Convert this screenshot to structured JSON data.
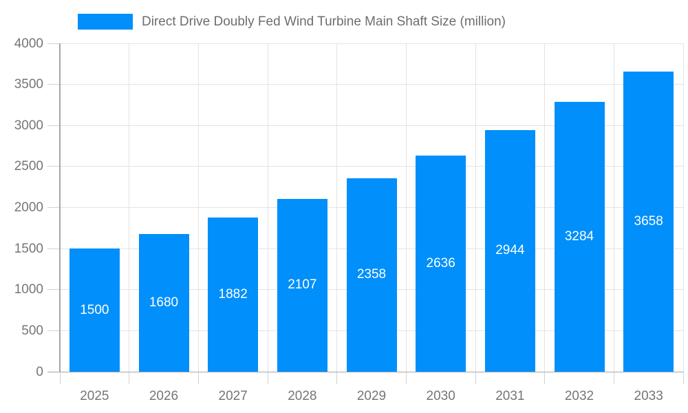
{
  "legend": {
    "series_label": "Direct Drive Doubly Fed Wind Turbine Main Shaft Size (million)"
  },
  "colors": {
    "bar": "#008FFB",
    "grid": "#e3e3e3",
    "axis": "#a6a6a6",
    "tick": "#d2d2d2",
    "axis_label_text": "#757575",
    "legend_text": "#6d6d6d",
    "bar_label_text": "#ffffff"
  },
  "chart_data": {
    "type": "bar",
    "title": "Direct Drive Doubly Fed Wind Turbine Main Shaft Size (million)",
    "categories": [
      "2025",
      "2026",
      "2027",
      "2028",
      "2029",
      "2030",
      "2031",
      "2032",
      "2033"
    ],
    "values": [
      1500,
      1680,
      1882,
      2107,
      2358,
      2636,
      2944,
      3284,
      3658
    ],
    "xlabel": "",
    "ylabel": "",
    "ylim": [
      0,
      4000
    ],
    "ytick_step": 500,
    "ytick_labels": [
      "0",
      "500",
      "1000",
      "1500",
      "2000",
      "2500",
      "3000",
      "3500",
      "4000"
    ],
    "grid": true,
    "legend_position": "top",
    "bar_label_placement": "inside-center-white"
  }
}
